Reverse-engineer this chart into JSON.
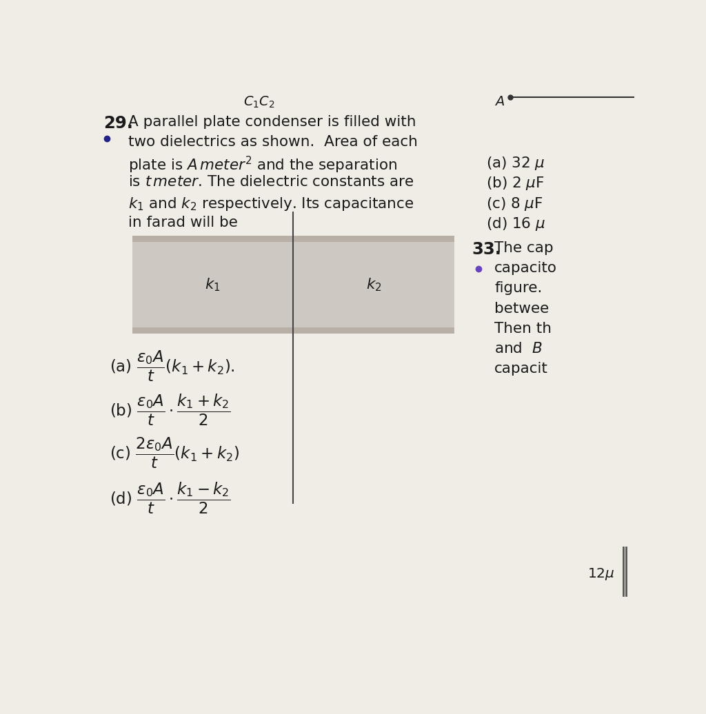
{
  "bg_color": "#f0ece6",
  "text_color": "#1a1a1a",
  "header_c1c2": "$C_1C_2$",
  "right_header_a": "$A$",
  "q_number": "29.",
  "bullet_color": "#22228a",
  "q_lines": [
    "A parallel plate condenser is filled with",
    "two dielectrics as shown.  Area of each",
    "plate is $A\\,meter^2$ and the separation",
    "is $t\\,meter$. The dielectric constants are",
    "$k_1$ and $k_2$ respectively. Its capacitance",
    "in farad will be"
  ],
  "right_a": "(a) 32 $\\mu$",
  "right_b": "(b) 2 $\\mu$F",
  "right_c": "(c) 8 $\\mu$F",
  "right_d": "(d) 16 $\\mu$",
  "q33_num": "33.",
  "q33_bullet_color": "#6644bb",
  "q33_lines": [
    "The cap",
    "capacito",
    "figure.",
    "betwee",
    "Then th",
    "and  $B$",
    "capacit"
  ],
  "ans_a": "(a) $\\dfrac{\\varepsilon_0 A}{t}(k_1+k_2).$",
  "ans_b": "(b) $\\dfrac{\\varepsilon_0 A}{t}\\cdot\\dfrac{k_1+k_2}{2}$",
  "ans_c": "(c) $\\dfrac{2\\varepsilon_0 A}{t}(k_1+k_2)$",
  "ans_d": "(d) $\\dfrac{\\varepsilon_0 A}{t}\\cdot\\dfrac{k_1-k_2}{2}$",
  "bottom_right_text": "$12\\mu$",
  "plate_color": "#b8b0a6",
  "dielectric_color": "#cdc8c2",
  "divider_color": "#444444",
  "plate_lw": 8,
  "fs_main": 15.5,
  "fs_ans": 16.5,
  "fs_header": 14.0
}
